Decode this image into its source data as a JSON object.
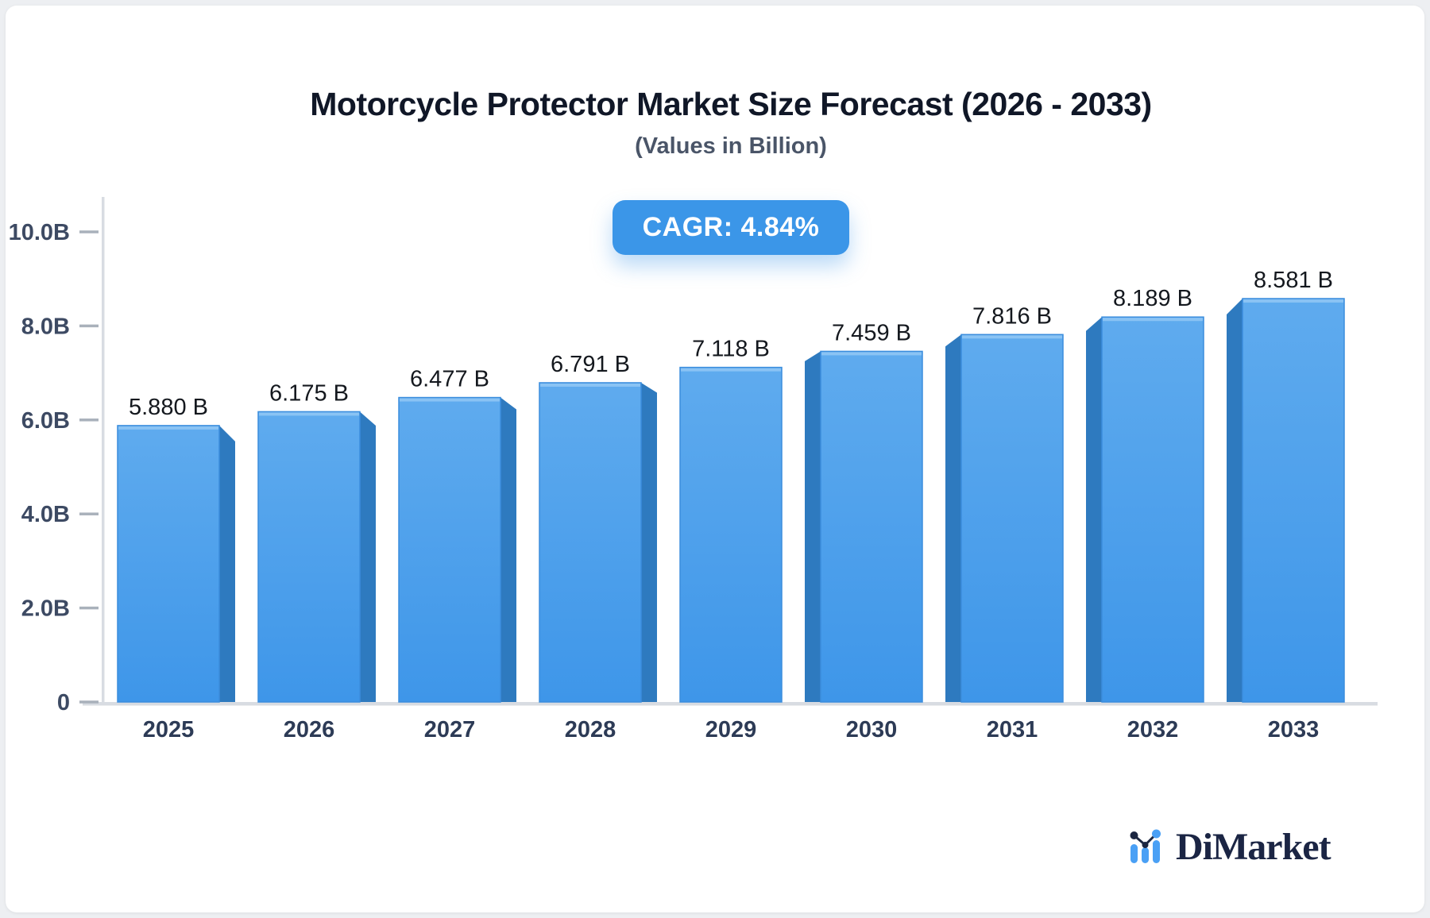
{
  "header": {
    "title": "Motorcycle Protector Market Size Forecast (2026 - 2033)",
    "subtitle": "(Values in Billion)",
    "cagr_badge": "CAGR: 4.84%"
  },
  "chart_data": {
    "type": "bar",
    "title": "Motorcycle Protector Market Size Forecast (2026 - 2033)",
    "subtitle": "(Values in Billion)",
    "categories": [
      "2025",
      "2026",
      "2027",
      "2028",
      "2029",
      "2030",
      "2031",
      "2032",
      "2033"
    ],
    "values": [
      5.88,
      6.175,
      6.477,
      6.791,
      7.118,
      7.459,
      7.816,
      8.189,
      8.581
    ],
    "value_labels": [
      "5.880 B",
      "6.175 B",
      "6.477 B",
      "6.791 B",
      "7.118 B",
      "7.459 B",
      "7.816 B",
      "8.189 B",
      "8.581 B"
    ],
    "xlabel": "",
    "ylabel": "",
    "ylim": [
      0,
      10
    ],
    "y_ticks": {
      "values": [
        0,
        2,
        4,
        6,
        8,
        10
      ],
      "labels": [
        "0",
        "2.0B",
        "4.0B",
        "6.0B",
        "8.0B",
        "10.0B"
      ]
    },
    "grid": "off",
    "legend": "none",
    "cagr_percent": 4.84,
    "bar_style": "3d-perspective"
  },
  "branding": {
    "logo_text": "DiMarket"
  },
  "colors": {
    "badge_bg": "#3b96e8",
    "bar_face_top": "#5fabee",
    "bar_face_bottom": "#3e96e9",
    "bar_face_stroke": "#3b8ddd",
    "bar_top_edge": "#8fc5f4",
    "bar_side": "#2e7abf",
    "axis_line": "#d8dce2",
    "tick_dash": "#a9b1bb",
    "y_label": "#3d4a63",
    "category_label": "#2d3b56",
    "value_label": "#14181e",
    "title": "#101727",
    "subtitle": "#4a5568",
    "logo_navy": "#1c2742",
    "logo_blue": "#4aa0f5"
  }
}
